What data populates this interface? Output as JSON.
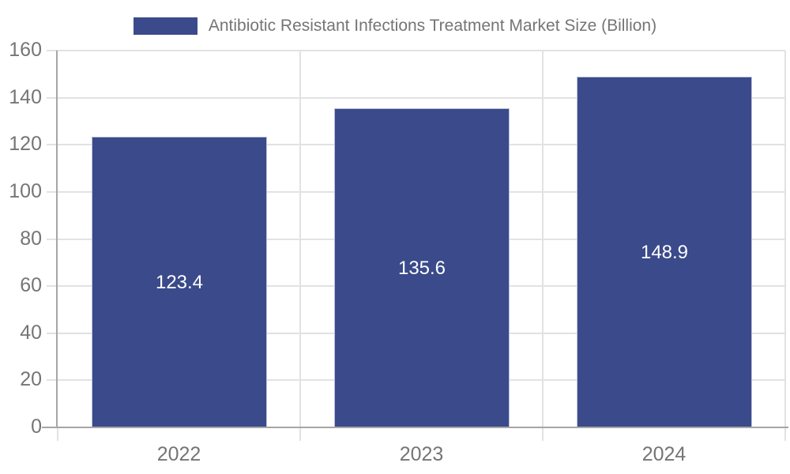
{
  "legend": {
    "label": "Antibiotic Resistant Infections Treatment Market Size (Billion)"
  },
  "chart_data": {
    "type": "bar",
    "title": "",
    "xlabel": "",
    "ylabel": "",
    "categories": [
      "2022",
      "2023",
      "2024"
    ],
    "values": [
      123.4,
      135.6,
      148.9
    ],
    "value_labels": [
      "123.4",
      "135.6",
      "148.9"
    ],
    "series": [
      {
        "name": "Antibiotic Resistant Infections Treatment Market Size (Billion)",
        "values": [
          123.4,
          135.6,
          148.9
        ]
      }
    ],
    "ylim": [
      0,
      160
    ],
    "yticks": [
      0,
      20,
      40,
      60,
      80,
      100,
      120,
      140,
      160
    ],
    "ytick_labels": [
      "0",
      "20",
      "40",
      "60",
      "80",
      "100",
      "120",
      "140",
      "160"
    ],
    "grid": true,
    "legend_position": "top-center",
    "colors": {
      "bar": "#3a4a8a",
      "bar-border": "#bcc4dc",
      "grid": "#e2e2e2",
      "axis": "#a6a6a6",
      "tick-label": "#757575",
      "legend-text": "#757575",
      "value-label": "#ffffff",
      "background": "#ffffff"
    }
  }
}
